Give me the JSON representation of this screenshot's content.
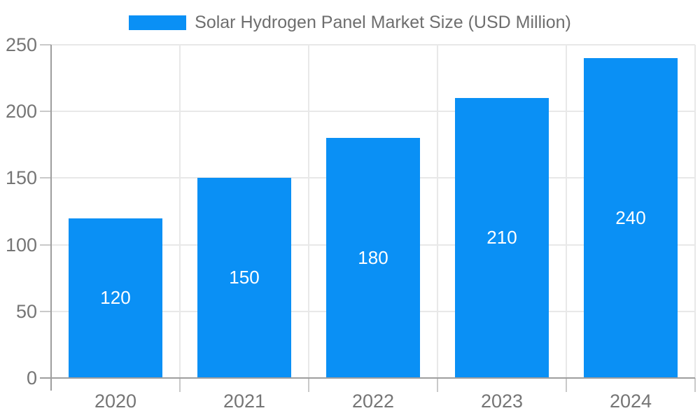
{
  "chart_data": {
    "type": "bar",
    "title": "Solar Hydrogen Panel Market Size (USD Million)",
    "categories": [
      "2020",
      "2021",
      "2022",
      "2023",
      "2024"
    ],
    "values": [
      120,
      150,
      180,
      210,
      240
    ],
    "bar_value_labels": [
      "120",
      "150",
      "180",
      "210",
      "240"
    ],
    "ylim": [
      0,
      250
    ],
    "yticks": [
      0,
      50,
      100,
      150,
      200,
      250
    ],
    "ytick_labels": [
      "0",
      "50",
      "100",
      "150",
      "200",
      "250"
    ],
    "xlabel": "",
    "ylabel": "",
    "grid": true,
    "legend_position": "top",
    "colors": {
      "bar": "#0a90f5",
      "bar_value_label": "#ffffff",
      "axis": "#9e9e9e",
      "gridline": "#e8e8e8",
      "tick_mark": "#c9c9c9",
      "tick_label": "#757575",
      "legend_text": "#6e6e6e",
      "background": "#ffffff"
    }
  }
}
